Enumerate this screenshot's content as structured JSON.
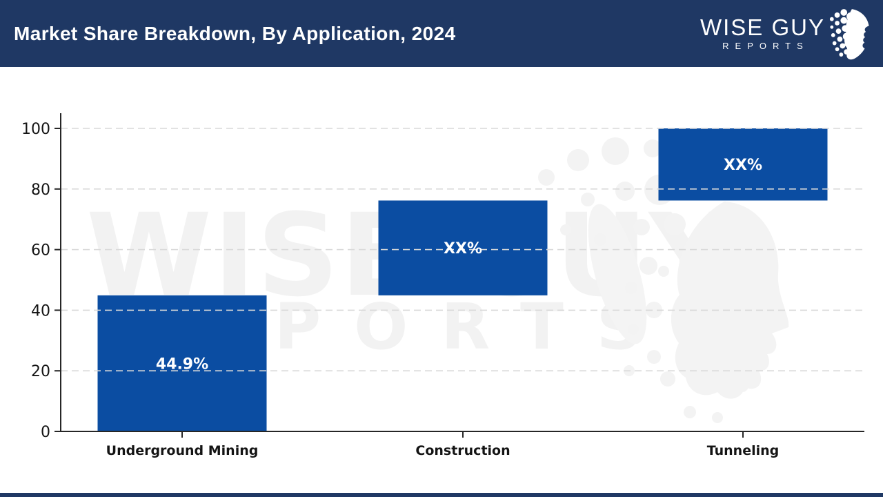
{
  "header": {
    "title": "Market Share Breakdown, By Application, 2024",
    "bg_color": "#1f3864",
    "logo": {
      "line1": "WISE GUY",
      "line2": "REPORTS"
    }
  },
  "watermark": {
    "line1": "WISE GUY",
    "line2": "REPORTS"
  },
  "chart_data": {
    "type": "bar",
    "subtype": "floating-waterfall",
    "title": "Market Share Breakdown, By Application, 2024",
    "categories": [
      "Underground Mining",
      "Construction",
      "Tunneling"
    ],
    "bars": [
      {
        "category": "Underground Mining",
        "start": 0,
        "end": 44.9,
        "label": "44.9%"
      },
      {
        "category": "Construction",
        "start": 44.9,
        "end": 76.2,
        "label": "XX%"
      },
      {
        "category": "Tunneling",
        "start": 76.2,
        "end": 100,
        "label": "XX%"
      }
    ],
    "yticks": [
      0,
      20,
      40,
      60,
      80,
      100
    ],
    "ylim": [
      0,
      105
    ],
    "xlabel": "",
    "ylabel": "",
    "grid": "dashed-horizontal",
    "legend": "none",
    "bar_color": "#0b4da2",
    "bar_label_color": "#ffffff",
    "axis_color": "#262626",
    "grid_color": "#d9d9d9",
    "tick_label_color": "#141414",
    "watermark_color": "#f2f2f2"
  },
  "footer": {
    "bg_color": "#1f3864"
  }
}
